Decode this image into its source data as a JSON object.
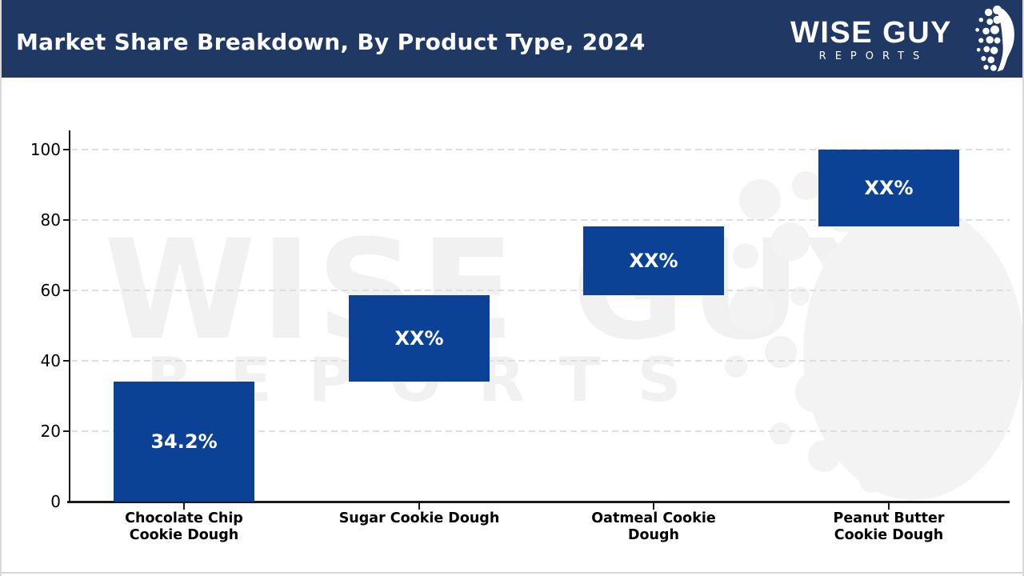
{
  "header": {
    "title": "Market Share Breakdown, By Product Type, 2024",
    "logo": {
      "line1": "WISE GUY",
      "line2": "REPORTS"
    }
  },
  "watermark": {
    "line1": "WISE GUY",
    "line2": "REPORTS"
  },
  "colors": {
    "header_bg": "#1F3864",
    "bar": "#0B4296",
    "bar_label": "#ffffff",
    "axis": "#1a1a1a",
    "gridline": "#dedede",
    "watermark": "#f1f1f1"
  },
  "chart_data": {
    "type": "bar",
    "subtype": "waterfall-stacked-percent",
    "title": "Market Share Breakdown, By Product Type, 2024",
    "xlabel": "",
    "ylabel": "",
    "ylim": [
      0,
      105
    ],
    "y_ticks": [
      0,
      20,
      40,
      60,
      80,
      100
    ],
    "grid": "horizontal-dashed",
    "legend": "none",
    "categories": [
      {
        "lines": [
          "Chocolate Chip",
          "Cookie Dough"
        ]
      },
      {
        "lines": [
          "Sugar Cookie Dough"
        ]
      },
      {
        "lines": [
          "Oatmeal Cookie",
          "Dough"
        ]
      },
      {
        "lines": [
          "Peanut Butter",
          "Cookie Dough"
        ]
      }
    ],
    "segments": [
      {
        "category": "Chocolate Chip Cookie Dough",
        "start": 0,
        "end": 34.2,
        "label": "34.2%"
      },
      {
        "category": "Sugar Cookie Dough",
        "start": 34.2,
        "end": 58.6,
        "label": "XX%"
      },
      {
        "category": "Oatmeal Cookie Dough",
        "start": 58.6,
        "end": 78.2,
        "label": "XX%"
      },
      {
        "category": "Peanut Butter Cookie Dough",
        "start": 78.2,
        "end": 100,
        "label": "XX%"
      }
    ]
  }
}
